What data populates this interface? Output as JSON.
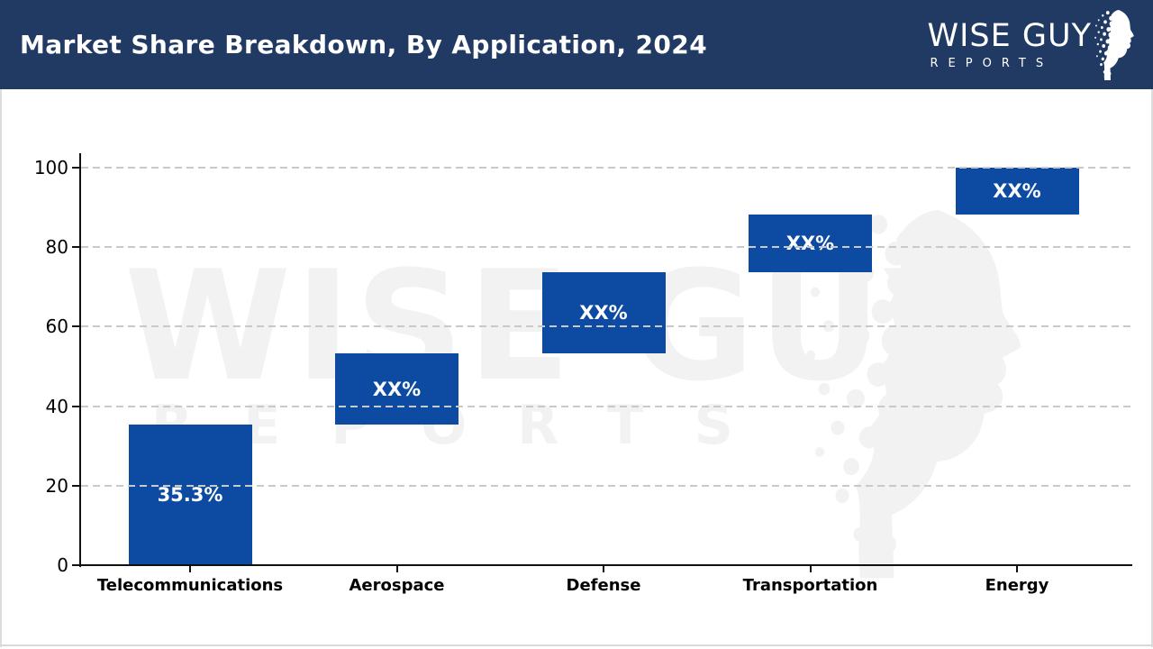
{
  "header": {
    "title": "Market Share Breakdown, By Application, 2024",
    "logo": {
      "name": "WISE GUY",
      "tagline": "REPORTS"
    }
  },
  "watermark": {
    "line1": "WISE GUY",
    "line2": "REPORTS"
  },
  "chart_data": {
    "type": "bar",
    "subtype": "waterfall-stacked",
    "title": "Market Share Breakdown, By Application, 2024",
    "categories": [
      "Telecommunications",
      "Aerospace",
      "Defense",
      "Transportation",
      "Energy"
    ],
    "segments": [
      {
        "category": "Telecommunications",
        "label": "35.3%",
        "start": 0,
        "end": 35.3,
        "value": 35.3,
        "masked": false
      },
      {
        "category": "Aerospace",
        "label": "XX%",
        "start": 35.3,
        "end": 53.2,
        "value": 17.9,
        "masked": true
      },
      {
        "category": "Defense",
        "label": "XX%",
        "start": 53.2,
        "end": 73.8,
        "value": 20.6,
        "masked": true
      },
      {
        "category": "Transportation",
        "label": "XX%",
        "start": 73.8,
        "end": 88.3,
        "value": 14.5,
        "masked": true
      },
      {
        "category": "Energy",
        "label": "XX%",
        "start": 88.3,
        "end": 100,
        "value": 11.7,
        "masked": true
      }
    ],
    "yticks": [
      0,
      20,
      40,
      60,
      80,
      100
    ],
    "ylim": [
      0,
      105
    ],
    "xlabel": "",
    "ylabel": "",
    "grid": {
      "axis": "y",
      "style": "dashed",
      "color": "#c9c9c9",
      "drawn_over_bars": true
    },
    "legend": null,
    "bar_color": "#0c4ba1",
    "bar_label_color": "#ffffff",
    "axis_color": "#111111",
    "header_color": "#213a64"
  }
}
